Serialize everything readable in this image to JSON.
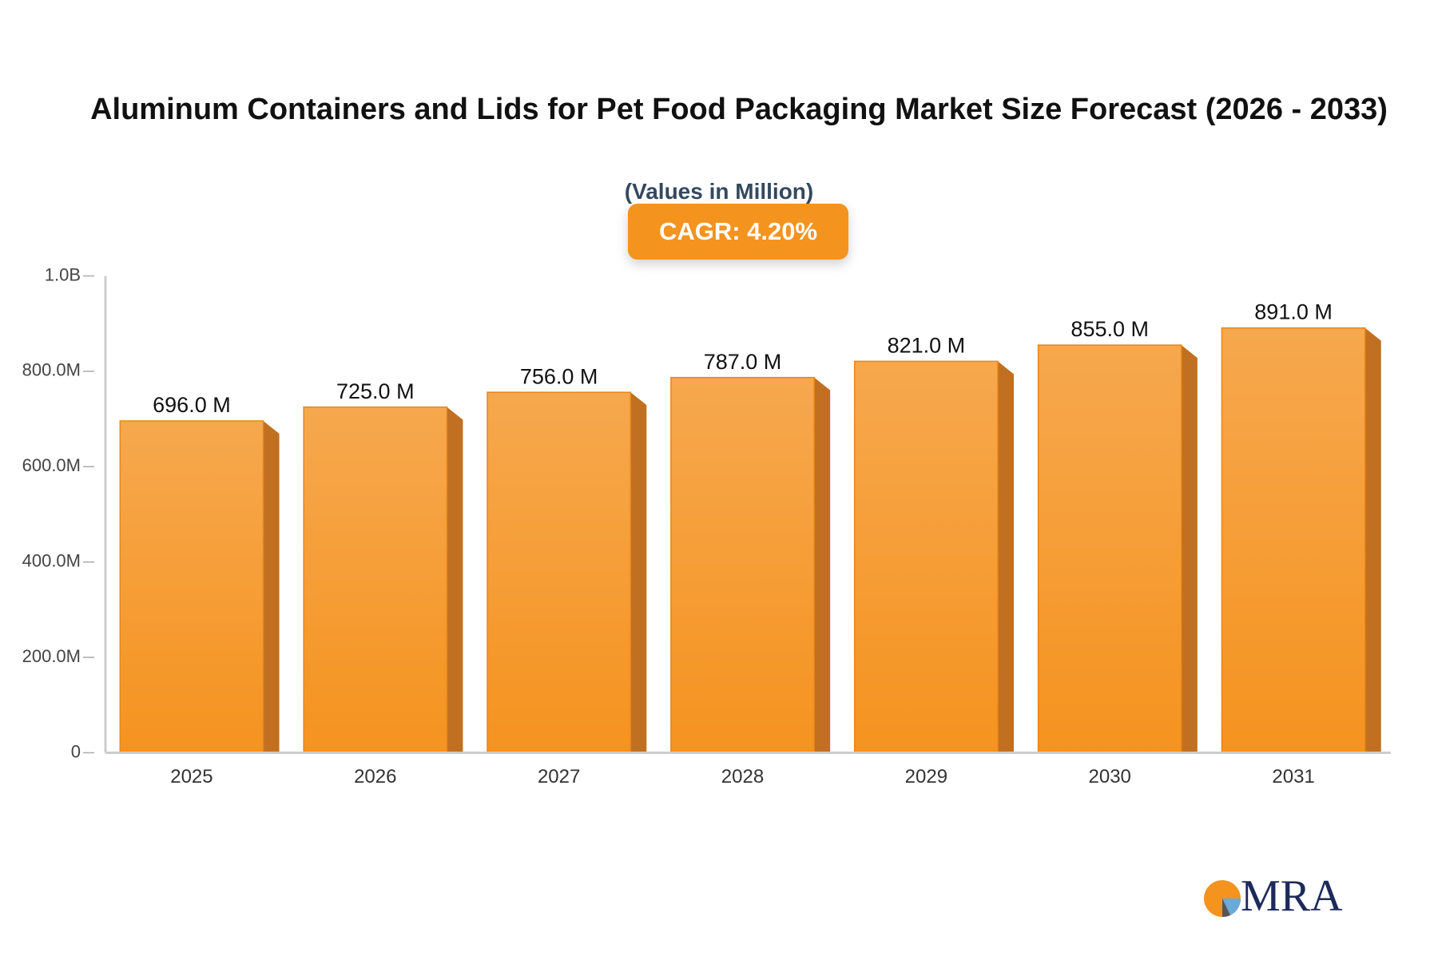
{
  "chart_data": {
    "type": "bar",
    "title": "Aluminum Containers and Lids for Pet Food Packaging Market Size Forecast (2026 - 2033)",
    "subtitle": "(Values in Million)",
    "annotation": "CAGR: 4.20%",
    "logo": "MRA",
    "categories": [
      "2025",
      "2026",
      "2027",
      "2028",
      "2029",
      "2030",
      "2031"
    ],
    "values": [
      696,
      725,
      756,
      787,
      821,
      855,
      891
    ],
    "value_labels": [
      "696.0 M",
      "725.0 M",
      "756.0 M",
      "787.0 M",
      "821.0 M",
      "855.0 M",
      "891.0 M"
    ],
    "color": "#f5931f",
    "ylim": [
      0,
      1000
    ],
    "yticks": [
      0,
      {
        "value": 200,
        "label": "200.0M"
      },
      {
        "value": 400,
        "label": "400.0M"
      },
      {
        "value": 600,
        "label": "600.0M"
      },
      {
        "value": 800,
        "label": "800.0M"
      },
      {
        "value": 1000,
        "label": "1.0B"
      }
    ],
    "grid": false
  }
}
